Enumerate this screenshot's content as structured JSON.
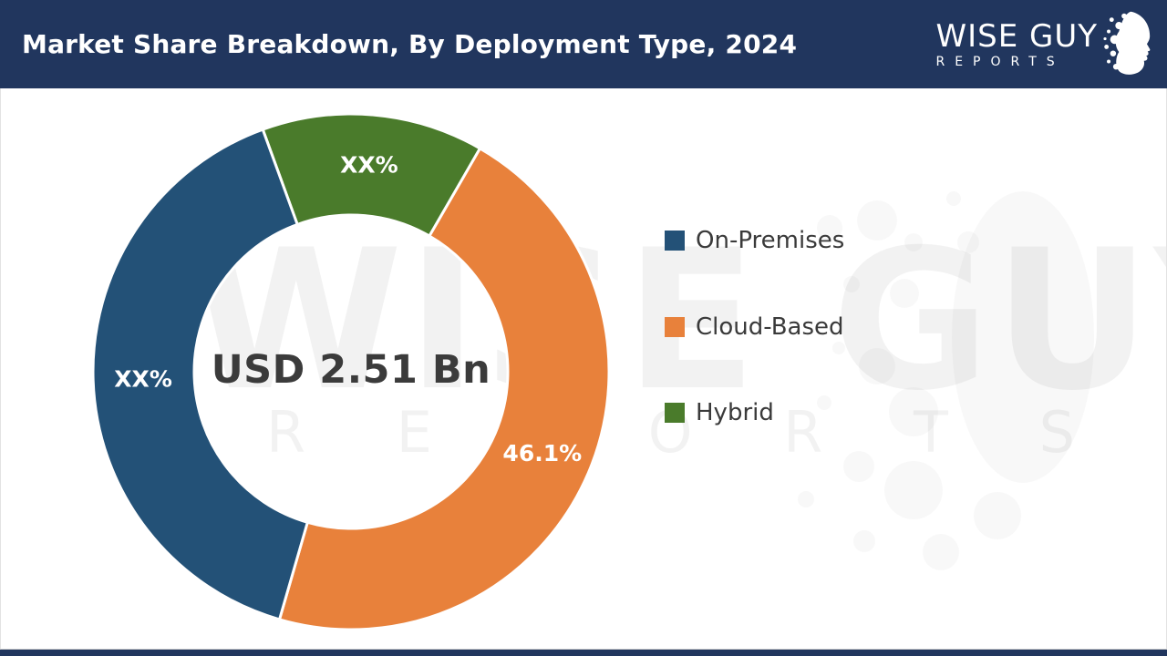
{
  "header": {
    "title": "Market Share Breakdown, By Deployment Type, 2024",
    "bg_color": "#21365e",
    "logo": {
      "name": "WISE GUY",
      "sub": "REPORTS"
    }
  },
  "watermark": {
    "name": "WISE GUY",
    "sub": "R E P O R T S"
  },
  "chart_data": {
    "type": "pie",
    "subtype": "donut",
    "title": "Market Share Breakdown, By Deployment Type, 2024",
    "center_label": "USD 2.51 Bn",
    "total_value_usd_bn": 2.51,
    "legend_position": "right",
    "geometry": {
      "outer_radius": 283,
      "inner_radius": 172,
      "label_radius": 228
    },
    "segments": [
      {
        "label": "Hybrid",
        "value_label": "XX%",
        "pct_est_from_arc": 13.9,
        "color": "#4a7b2b",
        "start_angle_deg": -20,
        "end_angle_deg": 30
      },
      {
        "label": "Cloud-Based",
        "value_label": "46.1%",
        "pct_est_from_arc": 46.1,
        "color": "#e8813b",
        "start_angle_deg": 30,
        "end_angle_deg": 196.1
      },
      {
        "label": "On-Premises",
        "value_label": "XX%",
        "pct_est_from_arc": 40.0,
        "color": "#235177",
        "start_angle_deg": 196.1,
        "end_angle_deg": 340
      }
    ]
  },
  "legend": {
    "items": [
      {
        "label": "On-Premises",
        "color": "#235177"
      },
      {
        "label": "Cloud-Based",
        "color": "#e8813b"
      },
      {
        "label": "Hybrid",
        "color": "#4a7b2b"
      }
    ]
  }
}
